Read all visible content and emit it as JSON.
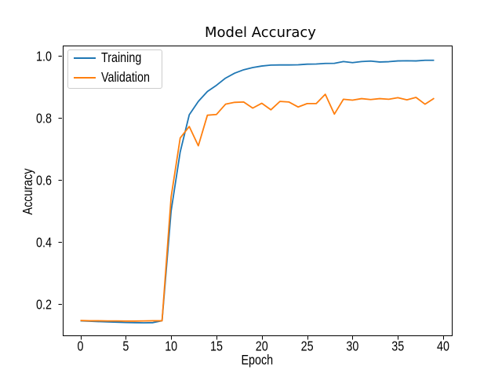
{
  "chart_data": {
    "type": "line",
    "title": "Model Accuracy",
    "xlabel": "Epoch",
    "ylabel": "Accuracy",
    "x": [
      0,
      1,
      2,
      3,
      4,
      5,
      6,
      7,
      8,
      9,
      10,
      11,
      12,
      13,
      14,
      15,
      16,
      17,
      18,
      19,
      20,
      21,
      22,
      23,
      24,
      25,
      26,
      27,
      28,
      29,
      30,
      31,
      32,
      33,
      34,
      35,
      36,
      37,
      38,
      39
    ],
    "series": [
      {
        "name": "Training",
        "color": "#1f77b4",
        "values": [
          0.146,
          0.1445,
          0.1435,
          0.1425,
          0.1415,
          0.1405,
          0.14,
          0.1395,
          0.14,
          0.146,
          0.5,
          0.69,
          0.81,
          0.853,
          0.885,
          0.905,
          0.928,
          0.944,
          0.955,
          0.962,
          0.967,
          0.97,
          0.9705,
          0.9705,
          0.971,
          0.973,
          0.9735,
          0.9755,
          0.9758,
          0.9815,
          0.978,
          0.9815,
          0.983,
          0.98,
          0.981,
          0.9835,
          0.984,
          0.9835,
          0.9855,
          0.9855
        ]
      },
      {
        "name": "Validation",
        "color": "#ff7f0e",
        "values": [
          0.147,
          0.146,
          0.146,
          0.1455,
          0.1455,
          0.145,
          0.145,
          0.1455,
          0.146,
          0.146,
          0.545,
          0.735,
          0.772,
          0.71,
          0.8085,
          0.811,
          0.844,
          0.85,
          0.851,
          0.8315,
          0.847,
          0.826,
          0.853,
          0.851,
          0.835,
          0.846,
          0.846,
          0.876,
          0.812,
          0.86,
          0.857,
          0.862,
          0.859,
          0.862,
          0.86,
          0.865,
          0.858,
          0.866,
          0.844,
          0.863
        ]
      }
    ],
    "xlim": [
      -1.95,
      40.95
    ],
    "ylim": [
      0.099,
      1.033
    ],
    "xticks": [
      0,
      5,
      10,
      15,
      20,
      25,
      30,
      35,
      40
    ],
    "yticks": [
      0.2,
      0.4,
      0.6,
      0.8,
      1.0
    ],
    "ytick_labels": [
      "0.2",
      "0.4",
      "0.6",
      "0.8",
      "1.0"
    ],
    "legend_position": "upper left",
    "grid": false
  },
  "colors": {
    "background": "#ffffff",
    "axis": "#000000",
    "legend_border": "#cccccc"
  }
}
